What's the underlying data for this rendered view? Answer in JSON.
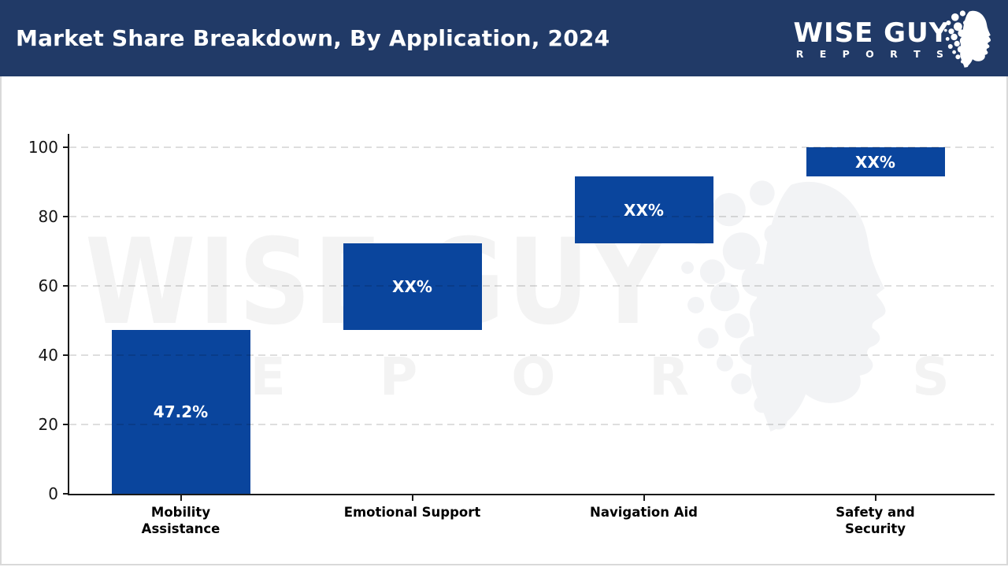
{
  "header": {
    "title": "Market Share Breakdown, By Application, 2024",
    "brand": {
      "line1": "WISE GUY",
      "line2": "R E P O R T S"
    }
  },
  "watermark": {
    "line1": "WISE GUY",
    "line2": "R E P O R T S"
  },
  "chart_data": {
    "type": "bar",
    "variant": "waterfall-stacked-breakdown",
    "title": "Market Share Breakdown, By Application, 2024",
    "categories": [
      "Mobility\nAssistance",
      "Emotional Support",
      "Navigation Aid",
      "Safety and\nSecurity"
    ],
    "series": [
      {
        "name": "Market Share (%)",
        "segments": [
          {
            "category": "Mobility Assistance",
            "start": 0,
            "end": 47.2,
            "label": "47.2%"
          },
          {
            "category": "Emotional Support",
            "start": 47.2,
            "end": 72.3,
            "label": "XX%"
          },
          {
            "category": "Navigation Aid",
            "start": 72.3,
            "end": 91.5,
            "label": "XX%"
          },
          {
            "category": "Safety and Security",
            "start": 91.5,
            "end": 100,
            "label": "XX%"
          }
        ]
      }
    ],
    "xlabel": "",
    "ylabel": "",
    "ylim": [
      0,
      100
    ],
    "yticks": [
      0,
      20,
      40,
      60,
      80,
      100
    ],
    "grid": "horizontal dashed",
    "legend": "none",
    "bar_color": "#0a459d",
    "header_color": "#213a67",
    "label_color": "#ffffff"
  }
}
